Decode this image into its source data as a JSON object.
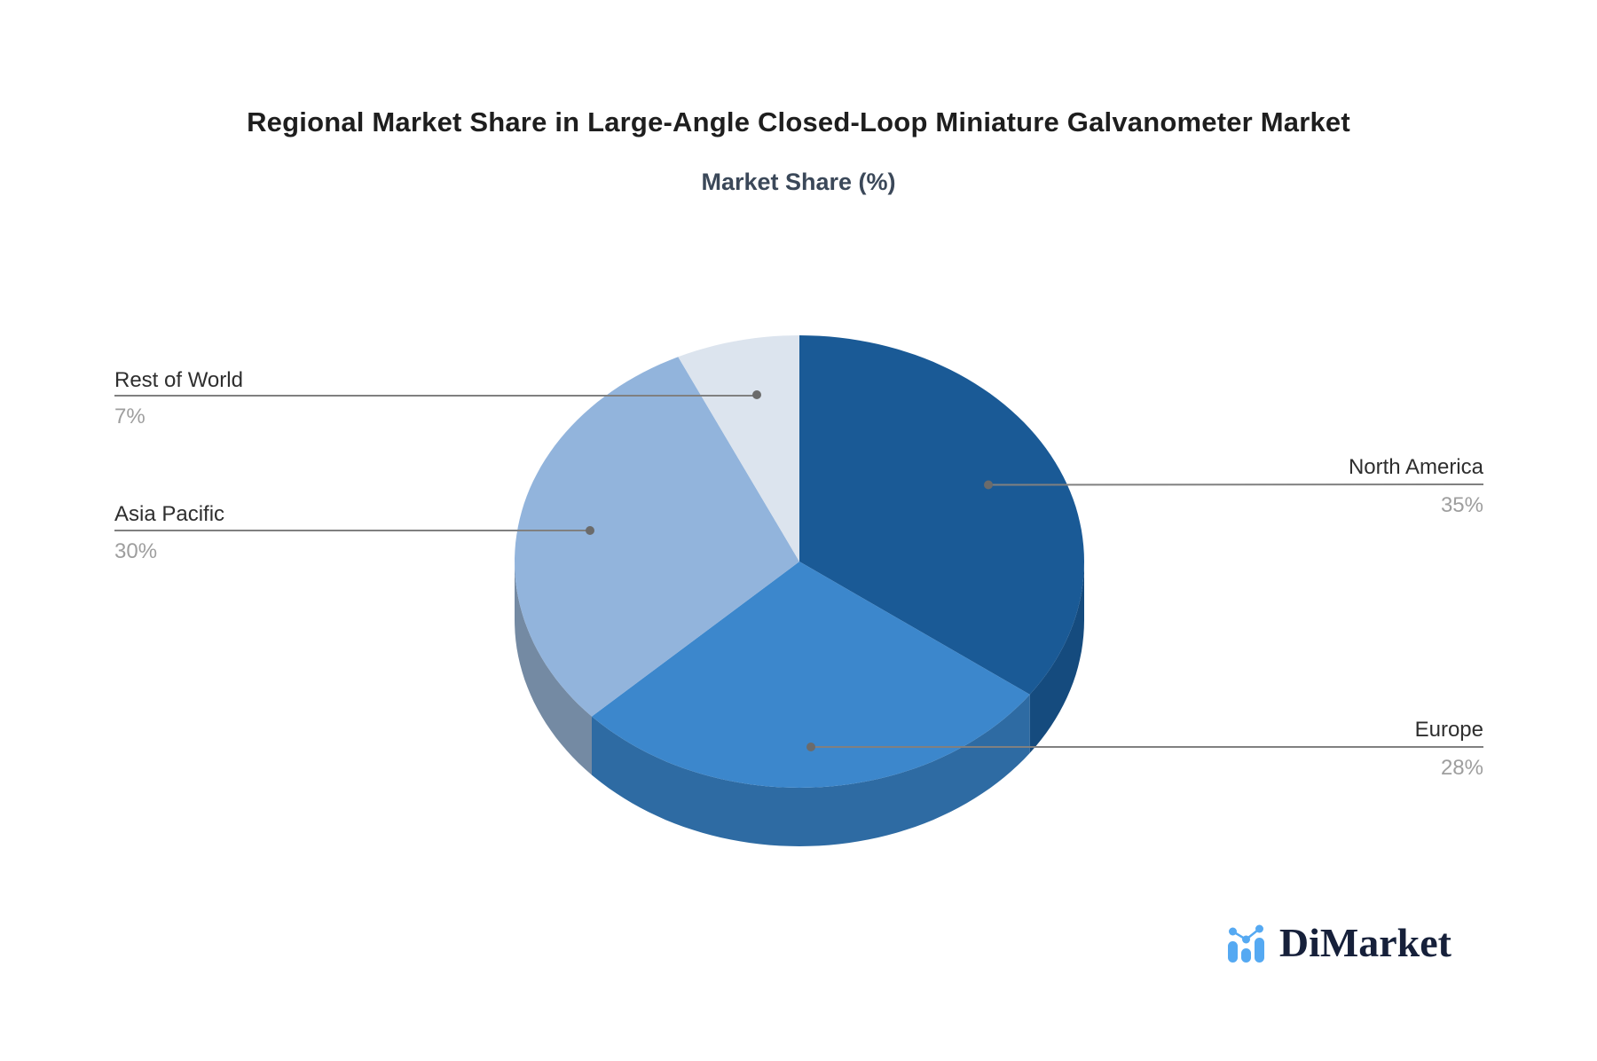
{
  "header": {
    "title": "Regional Market Share in Large-Angle Closed-Loop Miniature Galvanometer Market",
    "subtitle": "Market Share (%)"
  },
  "chart_data": {
    "type": "pie",
    "style": "3d-pie",
    "title": "Regional Market Share in Large-Angle Closed-Loop Miniature Galvanometer Market",
    "subtitle": "Market Share (%)",
    "unit": "%",
    "rotation": "clockwise from 12 o'clock",
    "labels": [
      "North America",
      "Europe",
      "Asia Pacific",
      "Rest of World"
    ],
    "values": [
      35,
      28,
      30,
      7
    ],
    "colors": [
      "#1a5a96",
      "#3c87cc",
      "#92b4dc",
      "#dce4ee"
    ],
    "side_colors": [
      "#154b7e",
      "#2e6ba3",
      "#748aa3",
      "#aeb9c9"
    ],
    "leader_line_color": "#808080",
    "leader_dot_color": "#6b6b6b",
    "slices": [
      {
        "label": "North America",
        "pct": "35%",
        "value": 35,
        "color": "#1a5a96"
      },
      {
        "label": "Europe",
        "pct": "28%",
        "value": 28,
        "color": "#3c87cc"
      },
      {
        "label": "Asia Pacific",
        "pct": "30%",
        "value": 30,
        "color": "#92b4dc"
      },
      {
        "label": "Rest of World",
        "pct": "7%",
        "value": 7,
        "color": "#dce4ee"
      }
    ]
  },
  "branding": {
    "brand": "DiMarket",
    "icon": "bar-line-chart-icon",
    "icon_color": "#55a9f2",
    "text_color": "#16203a"
  }
}
